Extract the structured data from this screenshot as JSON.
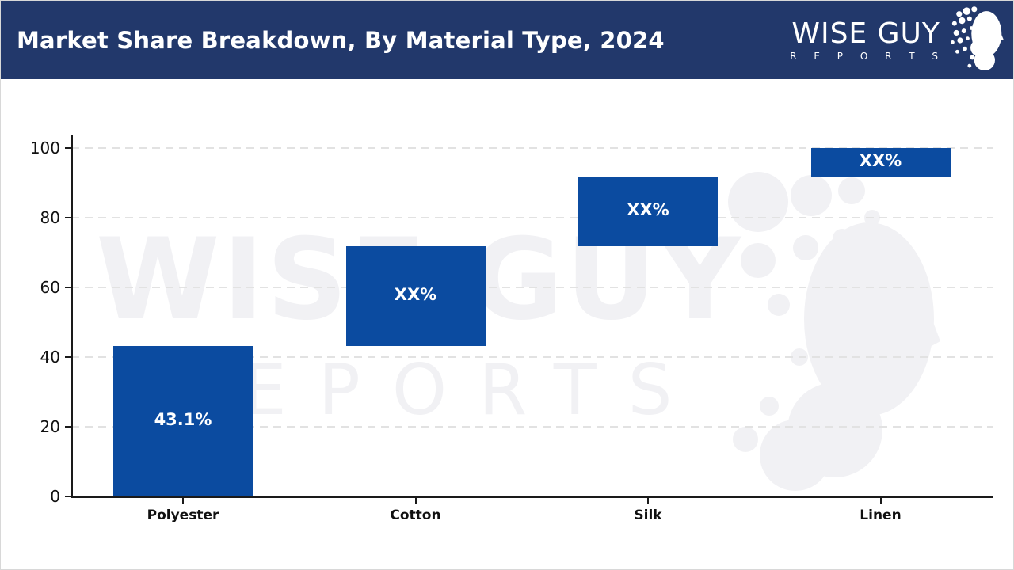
{
  "header": {
    "title": "Market Share Breakdown, By Material Type, 2024",
    "logo": {
      "line1": "WISE GUY",
      "line2": "R E P O R T S"
    }
  },
  "watermark": {
    "line1": "WISE GUY",
    "line2": "REPORTS"
  },
  "colors": {
    "header_bg": "#22386B",
    "bar_blue": "#0B4BA0",
    "watermark_gray": "#F1F1F4",
    "gridline_gray": "#E2E2E2",
    "axis_black": "#1A1A1A",
    "page_border": "#D8D8D8"
  },
  "chart_data": {
    "type": "bar",
    "subtype": "waterfall",
    "title": "Market Share Breakdown, By Material Type, 2024",
    "categories": [
      "Polyester",
      "Cotton",
      "Silk",
      "Linen"
    ],
    "segments": [
      {
        "category": "Polyester",
        "start": 0,
        "end": 43.1,
        "label": "43.1%"
      },
      {
        "category": "Cotton",
        "start": 43.1,
        "end": 71.8,
        "label": "XX%"
      },
      {
        "category": "Silk",
        "start": 71.8,
        "end": 91.9,
        "label": "XX%"
      },
      {
        "category": "Linen",
        "start": 91.9,
        "end": 100,
        "label": "XX%"
      }
    ],
    "ylim": [
      0,
      100
    ],
    "yticks": [
      0,
      20,
      40,
      60,
      80,
      100
    ],
    "xlabel": "",
    "ylabel": "",
    "grid": "horizontal-dashed",
    "legend": "none",
    "bar_color": "#0B4BA0"
  }
}
